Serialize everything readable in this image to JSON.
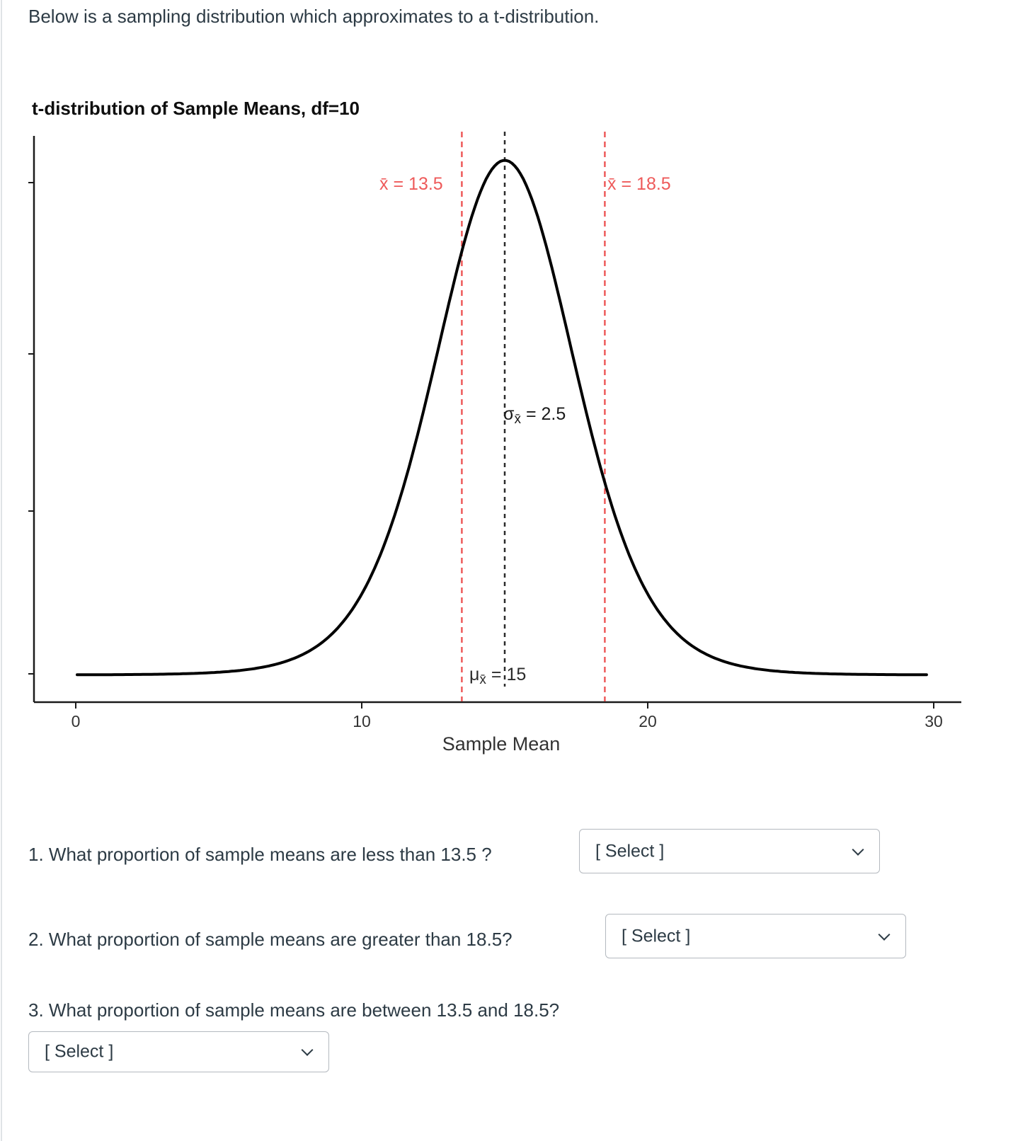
{
  "page": {
    "intro": "Below is a sampling distribution which approximates to a t-distribution."
  },
  "chart_data": {
    "type": "line",
    "title": "t-distribution of Sample Means, df=10",
    "xlabel": "Sample Mean",
    "ylabel": "",
    "xlim": [
      0,
      30
    ],
    "x_ticks": [
      "0",
      "10",
      "20",
      "30"
    ],
    "grid": false,
    "legend": "none",
    "curve": {
      "distribution": "t",
      "df": 10,
      "mean": 15,
      "sd": 2.5,
      "color": "#000000"
    },
    "vlines": [
      {
        "x": 13.5,
        "style": "dashed",
        "color": "#ee5a5a",
        "label": {
          "symbol": "x̄",
          "sub": "",
          "eq": "= 13.5"
        }
      },
      {
        "x": 18.5,
        "style": "dashed",
        "color": "#ee5a5a",
        "label": {
          "symbol": "x̄",
          "sub": "",
          "eq": "= 18.5"
        }
      },
      {
        "x": 15,
        "style": "dashed",
        "color": "#2b2b2b",
        "label": {
          "symbol": "μ",
          "sub": "x̄",
          "eq": "= 15"
        }
      }
    ],
    "annotations": [
      {
        "symbol": "σ",
        "sub": "x̄",
        "eq": "= 2.5",
        "anchor_x": 15
      }
    ]
  },
  "questions": [
    {
      "text": "1. What proportion of sample means are less than 13.5 ?",
      "select_label": "[ Select ]"
    },
    {
      "text": "2. What proportion of sample means are greater than 18.5?",
      "select_label": "[ Select ]"
    },
    {
      "text": "3. What proportion of sample means are between 13.5 and 18.5?",
      "select_label": "[ Select ]"
    }
  ]
}
